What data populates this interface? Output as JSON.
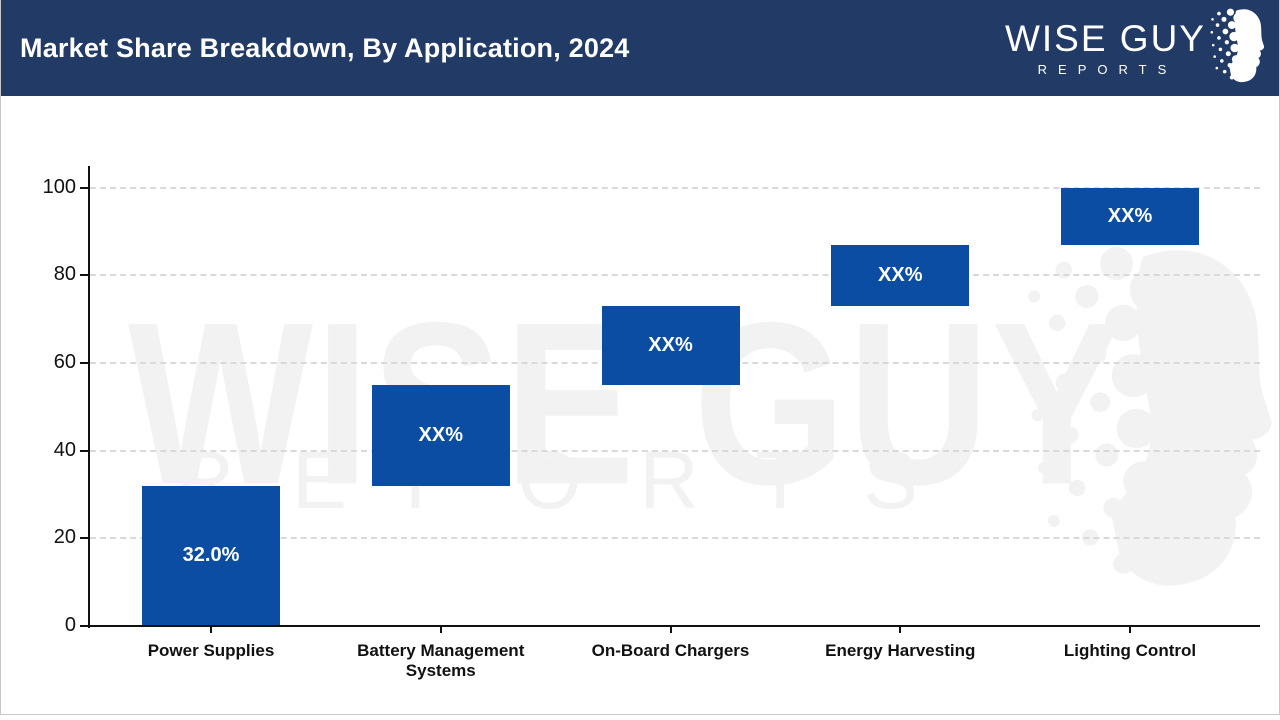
{
  "header": {
    "title": "Market Share Breakdown, By Application, 2024",
    "logo_line1": "WISE GUY",
    "logo_line2": "REPORTS"
  },
  "watermark": {
    "line1": "WISE GUY",
    "line2": "REPORTS"
  },
  "colors": {
    "header_bg": "#213a66",
    "bar": "#0b4da2",
    "bar_label": "#ffffff",
    "grid": "#d9d9d9",
    "axis": "#111111",
    "watermark": "#f2f2f2"
  },
  "chart_data": {
    "type": "bar",
    "subtype": "waterfall",
    "title": "Market Share Breakdown, By Application, 2024",
    "xlabel": "",
    "ylabel": "",
    "categories": [
      "Power Supplies",
      "Battery Management Systems",
      "On-Board Chargers",
      "Energy Harvesting",
      "Lighting Control"
    ],
    "series": [
      {
        "name": "Market Share (%)",
        "starts": [
          0,
          32,
          55,
          73,
          87
        ],
        "ends": [
          32,
          55,
          73,
          87,
          100
        ]
      }
    ],
    "bar_labels": [
      "32.0%",
      "XX%",
      "XX%",
      "XX%",
      "XX%"
    ],
    "yticks": [
      0,
      20,
      40,
      60,
      80,
      100
    ],
    "ylim": [
      0,
      104
    ],
    "grid": "dashed-horizontal",
    "legend": "none"
  }
}
